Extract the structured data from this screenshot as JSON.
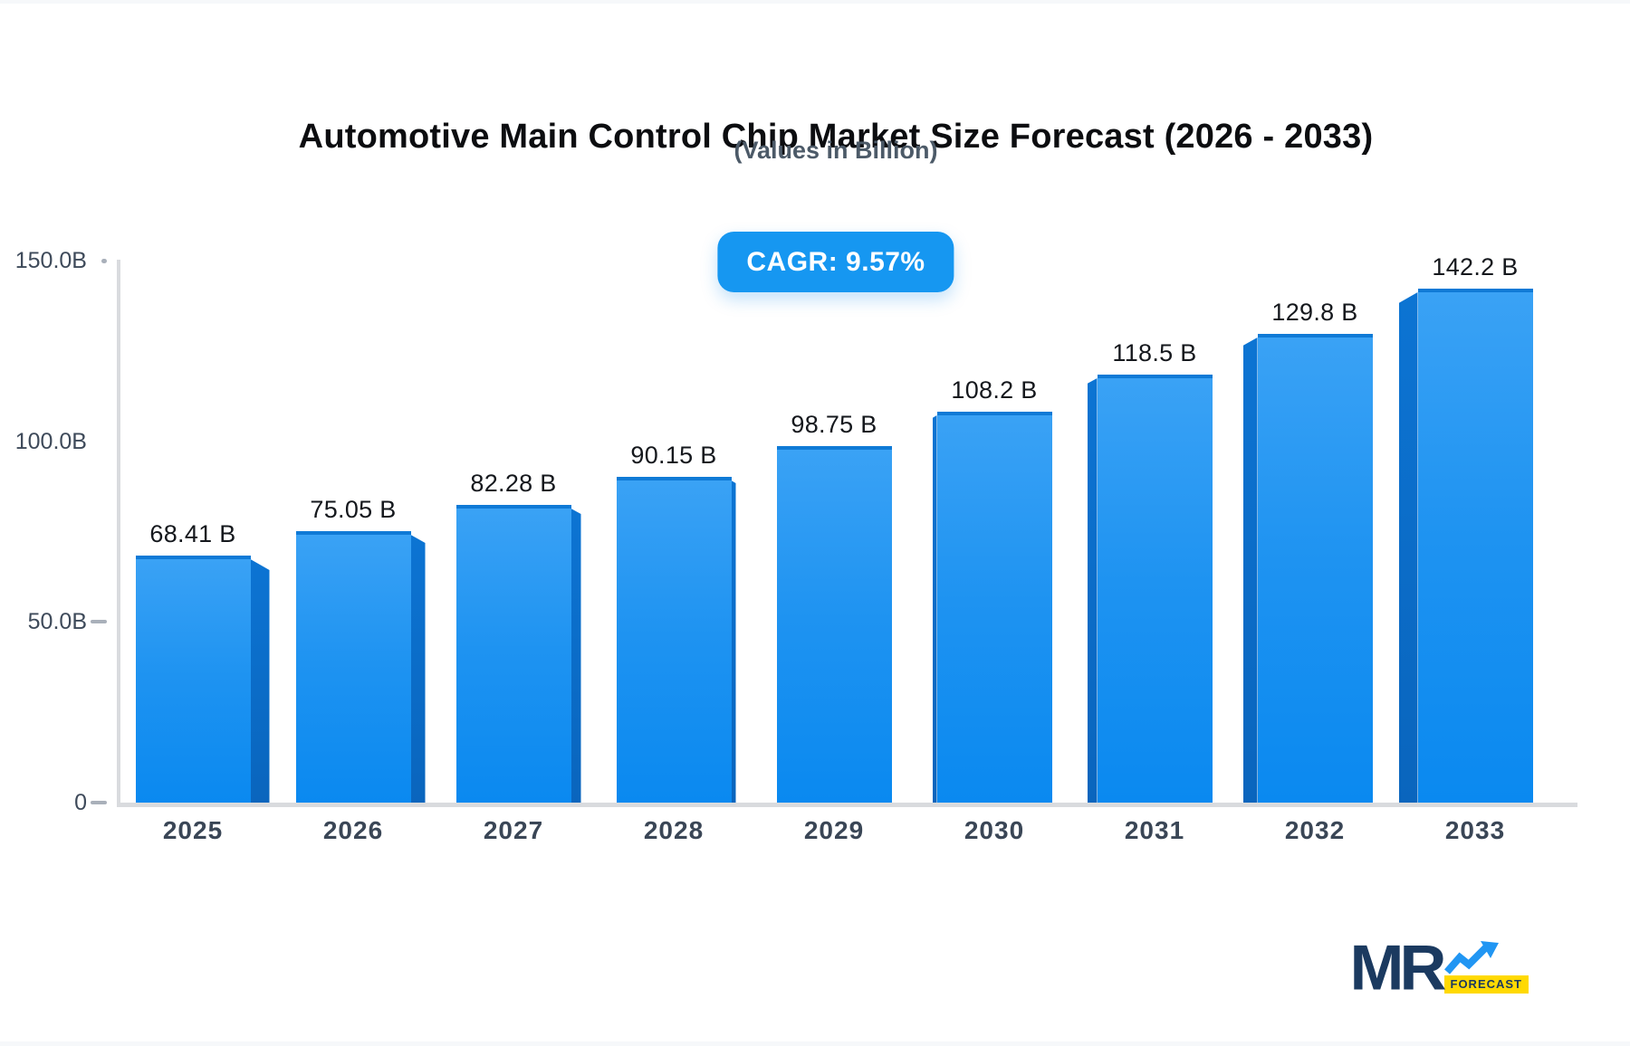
{
  "header": {
    "title": "Automotive Main Control Chip Market Size Forecast (2026 - 2033)",
    "subtitle": "(Values in Billion)",
    "cagr_label": "CAGR: 9.57%"
  },
  "chart_data": {
    "type": "bar",
    "title": "Automotive Main Control Chip Market Size Forecast (2026 - 2033)",
    "subtitle": "(Values in Billion)",
    "cagr_pct": 9.57,
    "categories": [
      "2025",
      "2026",
      "2027",
      "2028",
      "2029",
      "2030",
      "2031",
      "2032",
      "2033"
    ],
    "values": [
      68.41,
      75.05,
      82.28,
      90.15,
      98.75,
      108.2,
      118.5,
      129.8,
      142.2
    ],
    "bar_labels": [
      "68.41 B",
      "75.05 B",
      "82.28 B",
      "90.15 B",
      "98.75 B",
      "108.2 B",
      "118.5 B",
      "129.8 B",
      "142.2 B"
    ],
    "xlabel": "",
    "ylabel": "",
    "ylim": [
      0,
      150
    ],
    "yticks": [
      {
        "label": "150.0B",
        "value": 150,
        "tick": "dot"
      },
      {
        "label": "100.0B",
        "value": 100,
        "tick": "none"
      },
      {
        "label": "50.0B",
        "value": 50,
        "tick": "dash"
      },
      {
        "label": "0",
        "value": 0,
        "tick": "dash"
      }
    ],
    "grid": false,
    "legend": false,
    "bar_style": "3d-perspective-center"
  },
  "colors": {
    "bar_face_top": "#3aa2f5",
    "bar_face_bottom": "#0a89f0",
    "bar_top_edge": "#0f7ad6",
    "bar_side": "#0c74d3",
    "bar_side_dark": "#0a65bd",
    "badge_bg": "#1697f1",
    "badge_text": "#ffffff",
    "axis_line": "#d9dbde",
    "tick_mark": "#a9b0ba",
    "tick_text": "#3e4a5a",
    "year_text": "#3a4656",
    "value_text": "#15181d",
    "logo_navy": "#1b3a60",
    "logo_blue": "#2196f3",
    "logo_yellow": "#ffd902"
  },
  "logo": {
    "text": "MR",
    "badge": "FORECAST"
  }
}
